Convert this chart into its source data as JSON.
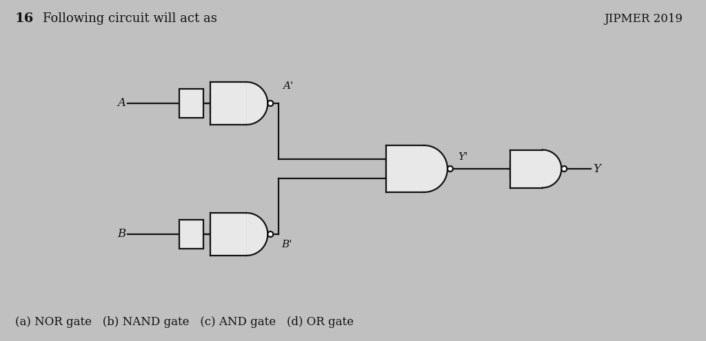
{
  "bg_color": "#c0c0c0",
  "title_num": "16",
  "title_text": " Following circuit will act as",
  "jipmer_text": "JIPMER 2019",
  "options_text": "(a) NOR gate   (b) NAND gate   (c) AND gate   (d) OR gate",
  "gate_color": "#e8e8e8",
  "gate_edge": "#111111",
  "line_color": "#111111",
  "text_color": "#111111",
  "lw": 1.6,
  "bubble_r": 0.04
}
